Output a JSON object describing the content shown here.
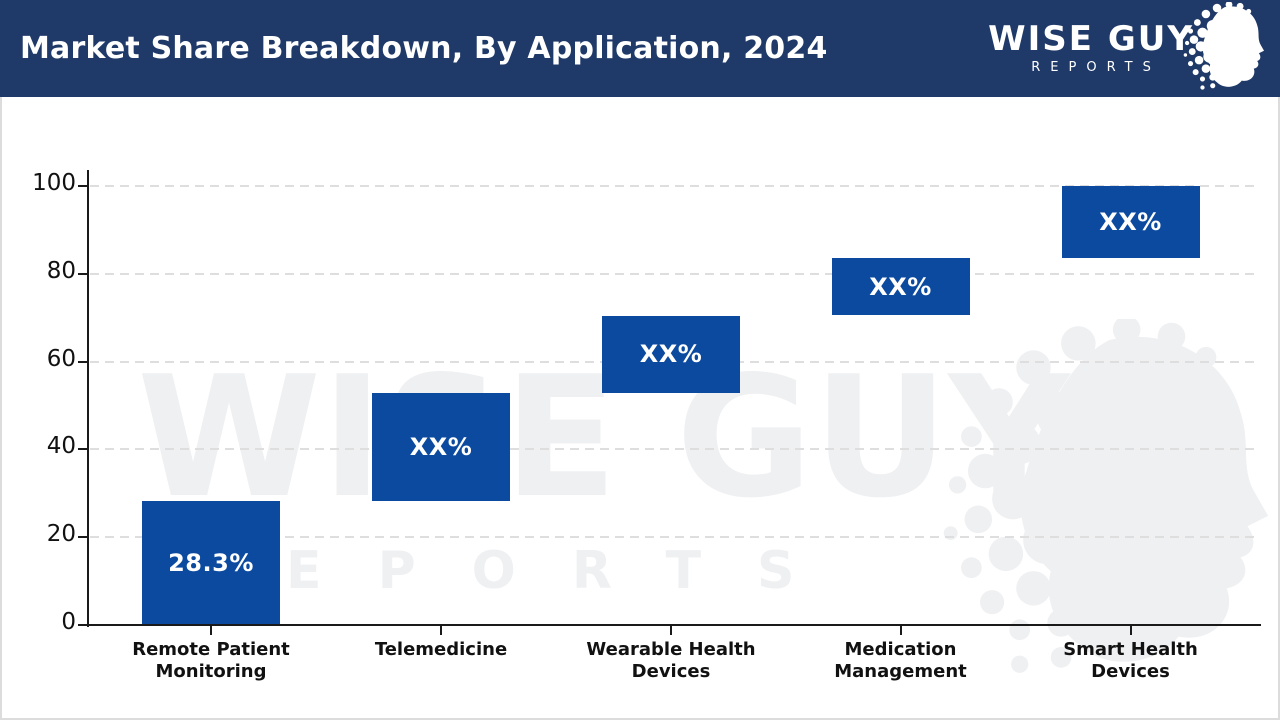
{
  "header": {
    "title": "Market Share Breakdown, By Application, 2024",
    "logo": {
      "line1": "WISE GUY",
      "line2": "REPORTS",
      "face_icon": "dotted-head-profile"
    }
  },
  "watermark": {
    "line1": "WISE GUY",
    "line2": "REPORTS",
    "face_icon": "dotted-head-profile"
  },
  "colors": {
    "header_bg": "#1f3968",
    "bar": "#0c4aa0",
    "grid": "#dedede",
    "axis": "#1a1a1a",
    "watermark": "#eff0f2",
    "bar_label": "#ffffff"
  },
  "chart_data": {
    "type": "bar",
    "subtype": "waterfall",
    "title": "Market Share Breakdown, By Application, 2024",
    "categories": [
      "Remote Patient Monitoring",
      "Telemedicine",
      "Wearable Health Devices",
      "Medication Management",
      "Smart Health Devices"
    ],
    "segments": [
      {
        "category": "Remote Patient Monitoring",
        "start": 0,
        "end": 28.3,
        "label": "28.3%"
      },
      {
        "category": "Telemedicine",
        "start": 28.3,
        "end": 52.8,
        "label": "XX%"
      },
      {
        "category": "Wearable Health Devices",
        "start": 52.8,
        "end": 70.5,
        "label": "XX%"
      },
      {
        "category": "Medication Management",
        "start": 70.5,
        "end": 83.7,
        "label": "XX%"
      },
      {
        "category": "Smart Health Devices",
        "start": 83.7,
        "end": 100,
        "label": "XX%"
      }
    ],
    "yticks": [
      0,
      20,
      40,
      60,
      80,
      100
    ],
    "ylim": [
      0,
      103.6
    ],
    "grid": "horizontal-dashed",
    "legend": "none",
    "xlabel": "",
    "ylabel": ""
  }
}
